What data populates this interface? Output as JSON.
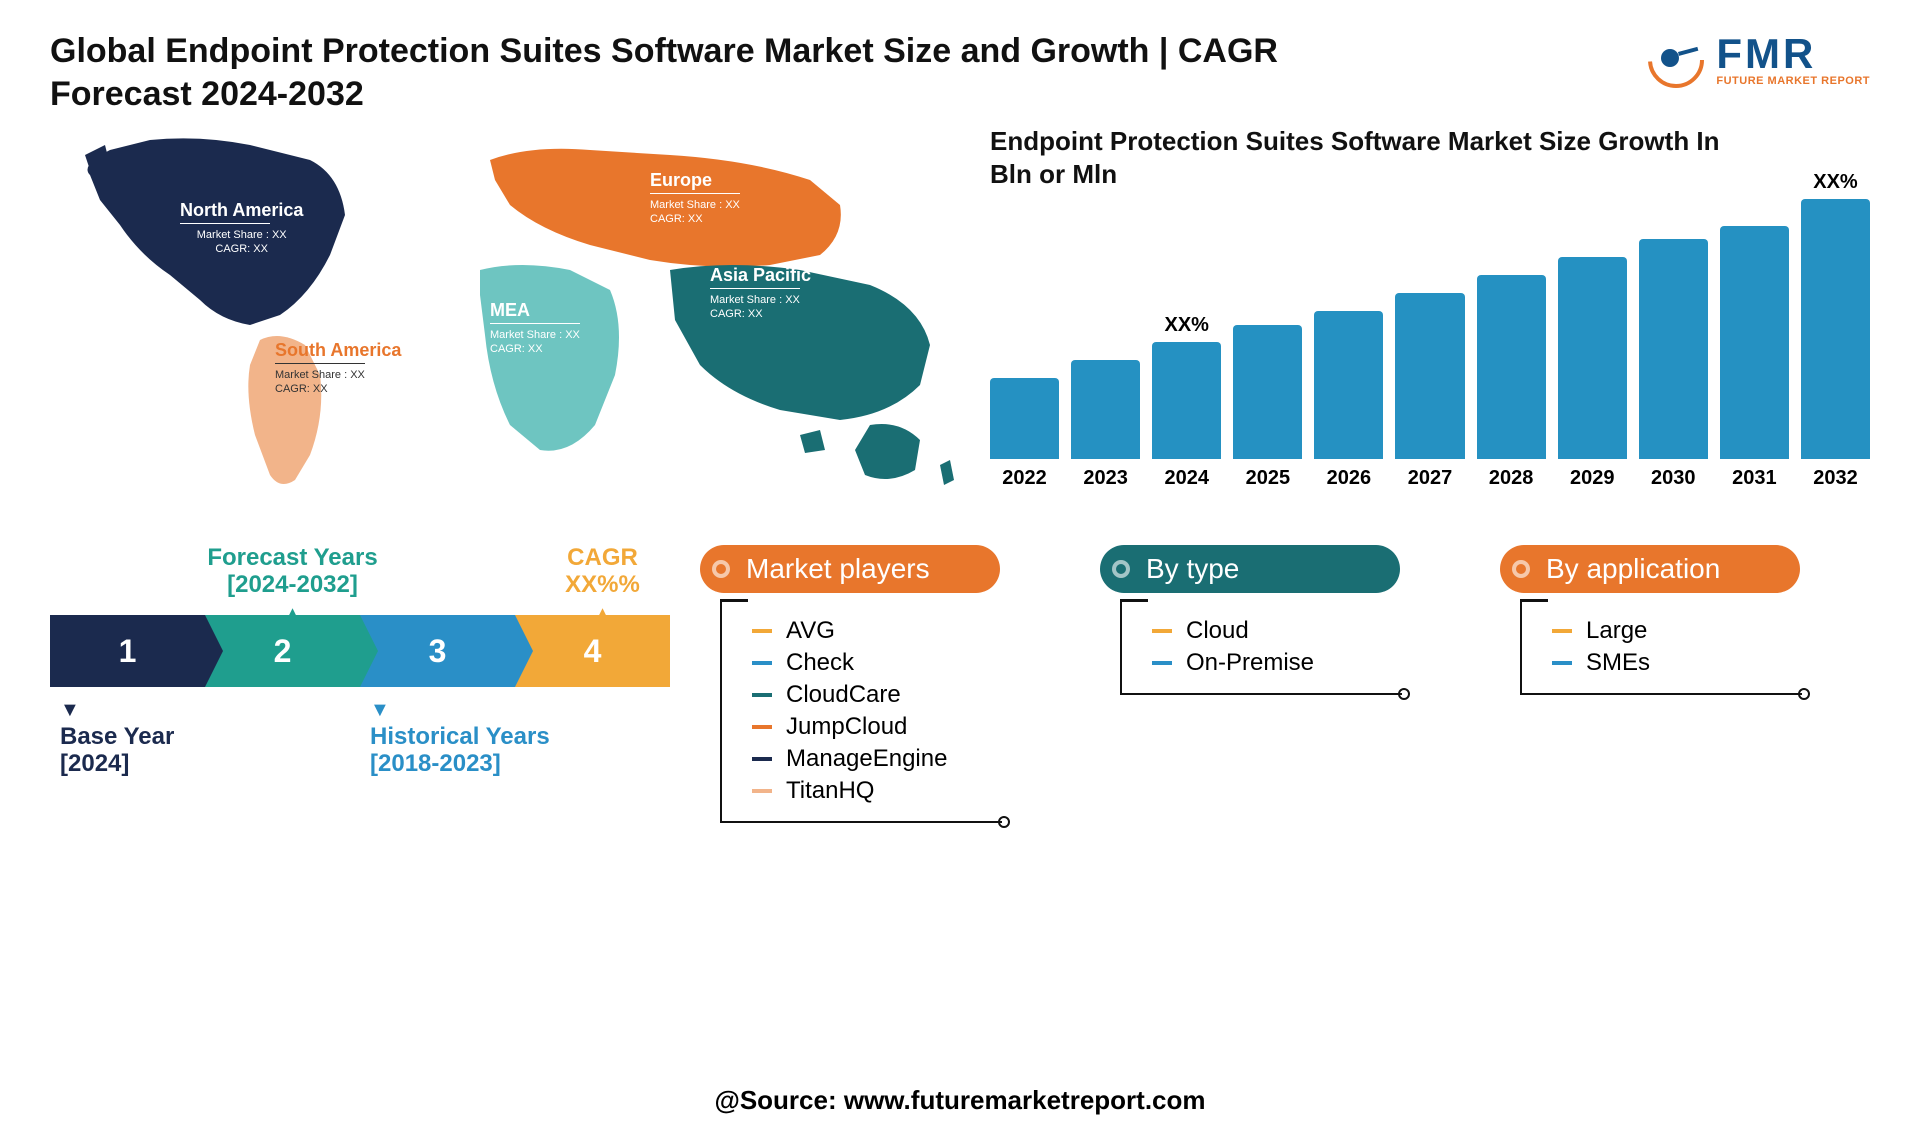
{
  "title": "Global Endpoint Protection Suites Software Market Size and Growth | CAGR Forecast 2024-2032",
  "logo": {
    "fmr": "FMR",
    "sub": "FUTURE MARKET REPORT"
  },
  "colors": {
    "navy": "#1b2a4e",
    "teal": "#1f9e8e",
    "orange": "#e8762c",
    "lightteal": "#6ec5c1",
    "darkteal": "#1a6e73",
    "blue": "#2a8fc7",
    "peach": "#f2b48a",
    "barcolor": "#2591c2",
    "tl1": "#1b2a4e",
    "tl2": "#1f9e8e",
    "tl3": "#2a8fc7",
    "tl4": "#f2a838",
    "tick_orange": "#f2a838",
    "tick_blue": "#2a8fc7",
    "tick_teal": "#1a6e73",
    "tick_dorange": "#e8762c",
    "tick_navy": "#1b2a4e",
    "tick_peach": "#f2b48a"
  },
  "map": {
    "regions": [
      {
        "name": "North America",
        "share": "Market Share : XX",
        "cagr": "CAGR: XX",
        "color": "#1b2a4e"
      },
      {
        "name": "South America",
        "share": "Market Share : XX",
        "cagr": "CAGR: XX",
        "color": "#f2b48a"
      },
      {
        "name": "Europe",
        "share": "Market Share : XX",
        "cagr": "CAGR: XX",
        "color": "#e8762c"
      },
      {
        "name": "MEA",
        "share": "Market Share : XX",
        "cagr": "CAGR: XX",
        "color": "#6ec5c1"
      },
      {
        "name": "Asia Pacific",
        "share": "Market Share : XX",
        "cagr": "CAGR: XX",
        "color": "#1a6e73"
      }
    ]
  },
  "chart": {
    "title": "Endpoint Protection Suites Software Market Size Growth In\nBln or Mln",
    "type": "bar",
    "years": [
      "2022",
      "2023",
      "2024",
      "2025",
      "2026",
      "2027",
      "2028",
      "2029",
      "2030",
      "2031",
      "2032"
    ],
    "values": [
      90,
      110,
      130,
      150,
      165,
      185,
      205,
      225,
      245,
      260,
      290
    ],
    "max": 290,
    "bar_color": "#2591c2",
    "top_labels": {
      "2": "XX%",
      "10": "XX%"
    },
    "label_fontsize": 20
  },
  "timeline": {
    "top": [
      {
        "idx": 1,
        "title": "Forecast Years",
        "sub": "[2024-2032]",
        "color": "#1f9e8e"
      },
      {
        "idx": 3,
        "title": "CAGR",
        "sub": "XX%%",
        "color": "#f2a838"
      }
    ],
    "segments": [
      {
        "n": "1",
        "color": "#1b2a4e"
      },
      {
        "n": "2",
        "color": "#1f9e8e"
      },
      {
        "n": "3",
        "color": "#2a8fc7"
      },
      {
        "n": "4",
        "color": "#f2a838"
      }
    ],
    "bottom": [
      {
        "idx": 0,
        "title": "Base Year",
        "sub": "[2024]",
        "color": "#1b2a4e"
      },
      {
        "idx": 2,
        "title": "Historical Years",
        "sub": "[2018-2023]",
        "color": "#2a8fc7"
      }
    ]
  },
  "categories": [
    {
      "title": "Market players",
      "pill_color": "#e8762c",
      "items": [
        {
          "label": "AVG",
          "tick": "#f2a838"
        },
        {
          "label": "Check",
          "tick": "#2a8fc7"
        },
        {
          "label": "CloudCare",
          "tick": "#1a6e73"
        },
        {
          "label": "JumpCloud",
          "tick": "#e8762c"
        },
        {
          "label": "ManageEngine",
          "tick": "#1b2a4e"
        },
        {
          "label": "TitanHQ",
          "tick": "#f2b48a"
        }
      ]
    },
    {
      "title": "By type",
      "pill_color": "#1a6e73",
      "items": [
        {
          "label": "Cloud",
          "tick": "#f2a838"
        },
        {
          "label": "On-Premise",
          "tick": "#2a8fc7"
        }
      ]
    },
    {
      "title": "By application",
      "pill_color": "#e8762c",
      "items": [
        {
          "label": "Large",
          "tick": "#f2a838"
        },
        {
          "label": "SMEs",
          "tick": "#2a8fc7"
        }
      ]
    }
  ],
  "source": "@Source: www.futuremarketreport.com"
}
